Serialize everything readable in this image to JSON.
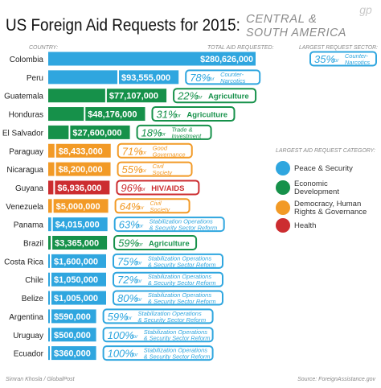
{
  "header": {
    "title": "US Foreign Aid Requests for 2015:",
    "region_line1": "CENTRAL &",
    "region_line2": "SOUTH AMERICA",
    "logo": "gp"
  },
  "columns": {
    "country": "COUNTRY:",
    "total": "TOTAL AID REQUESTED:",
    "largest": "LARGEST REQUEST SECTOR:"
  },
  "legend": {
    "title": "LARGEST AID REQUEST CATEGORY:",
    "items": [
      {
        "label_lines": [
          "Peace & Security"
        ],
        "color": "#2fa6df"
      },
      {
        "label_lines": [
          "Economic",
          "Development"
        ],
        "color": "#16914a"
      },
      {
        "label_lines": [
          "Democracy, Human",
          "Rights & Governance"
        ],
        "color": "#f29a26"
      },
      {
        "label_lines": [
          "Health"
        ],
        "color": "#cc2d30"
      }
    ]
  },
  "footer": {
    "credit": "Simran Khosla / GlobalPost",
    "source": "Source: ForeignAssistance.gov"
  },
  "chart_data": {
    "type": "bar",
    "title": "US Foreign Aid Requests for 2015: CENTRAL & SOUTH AMERICA",
    "xlabel": "TOTAL AID REQUESTED:",
    "ylabel": "COUNTRY:",
    "categories": [
      "Colombia",
      "Peru",
      "Guatemala",
      "Honduras",
      "El Salvador",
      "Paraguay",
      "Nicaragua",
      "Guyana",
      "Venezuela",
      "Panama",
      "Brazil",
      "Costa Rica",
      "Chile",
      "Belize",
      "Argentina",
      "Uruguay",
      "Ecuador"
    ],
    "values": [
      280626000,
      93555000,
      77107000,
      48176000,
      27600000,
      8433000,
      8200000,
      6936000,
      5000000,
      4015000,
      3365000,
      1600000,
      1050000,
      1005000,
      590000,
      500000,
      360000
    ],
    "value_labels": [
      "$280,626,000",
      "$93,555,000",
      "$77,107,000",
      "$48,176,000",
      "$27,600,000",
      "$8,433,000",
      "$8,200,000",
      "$6,936,000",
      "$5,000,000",
      "$4,015,000",
      "$3,365,000",
      "$1,600,000",
      "$1,050,000",
      "$1,005,000",
      "$590,000",
      "$500,000",
      "$360,000"
    ],
    "category_group": [
      "Peace & Security",
      "Peace & Security",
      "Economic Development",
      "Economic Development",
      "Economic Development",
      "Democracy, Human Rights & Governance",
      "Democracy, Human Rights & Governance",
      "Health",
      "Democracy, Human Rights & Governance",
      "Peace & Security",
      "Economic Development",
      "Peace & Security",
      "Peace & Security",
      "Peace & Security",
      "Peace & Security",
      "Peace & Security",
      "Peace & Security"
    ],
    "colors": [
      "#2fa6df",
      "#2fa6df",
      "#16914a",
      "#16914a",
      "#16914a",
      "#f29a26",
      "#f29a26",
      "#cc2d30",
      "#f29a26",
      "#2fa6df",
      "#16914a",
      "#2fa6df",
      "#2fa6df",
      "#2fa6df",
      "#2fa6df",
      "#2fa6df",
      "#2fa6df"
    ],
    "largest_sector": [
      {
        "pct": "35%",
        "for": "for",
        "lines": [
          "Counter-",
          "Narcotics"
        ]
      },
      {
        "pct": "78%",
        "for": "for",
        "lines": [
          "Counter-",
          "Narcotics"
        ]
      },
      {
        "pct": "22%",
        "for": "for",
        "lines": [
          "Agriculture"
        ]
      },
      {
        "pct": "31%",
        "for": "for",
        "lines": [
          "Agriculture"
        ]
      },
      {
        "pct": "18%",
        "for": "for",
        "lines": [
          "Trade &",
          "Investment"
        ]
      },
      {
        "pct": "71%",
        "for": "for",
        "lines": [
          "Good",
          "Governance"
        ]
      },
      {
        "pct": "55%",
        "for": "for",
        "lines": [
          "Civil",
          "Society"
        ]
      },
      {
        "pct": "96%",
        "for": "for",
        "lines": [
          "HIV/AIDS"
        ]
      },
      {
        "pct": "64%",
        "for": "for",
        "lines": [
          "Civil",
          "Society"
        ]
      },
      {
        "pct": "63%",
        "for": "for",
        "lines": [
          "Stabilization Operations",
          "& Security Sector Reform"
        ]
      },
      {
        "pct": "59%",
        "for": "for",
        "lines": [
          "Agriculture"
        ]
      },
      {
        "pct": "75%",
        "for": "for",
        "lines": [
          "Stabilization Operations",
          "& Security Sector Reform"
        ]
      },
      {
        "pct": "72%",
        "for": "for",
        "lines": [
          "Stabilization Operations",
          "& Security Sector Reform"
        ]
      },
      {
        "pct": "80%",
        "for": "for",
        "lines": [
          "Stabilization Operations",
          "& Security Sector Reform"
        ]
      },
      {
        "pct": "59%",
        "for": "for",
        "lines": [
          "Stabilization Operations",
          "& Security Sector Reform"
        ]
      },
      {
        "pct": "100%",
        "for": "for",
        "lines": [
          "Stabilization Operations",
          "& Security Sector Reform"
        ]
      },
      {
        "pct": "100%",
        "for": "for",
        "lines": [
          "Stabilization Operations",
          "& Security Sector Reform"
        ]
      }
    ]
  }
}
